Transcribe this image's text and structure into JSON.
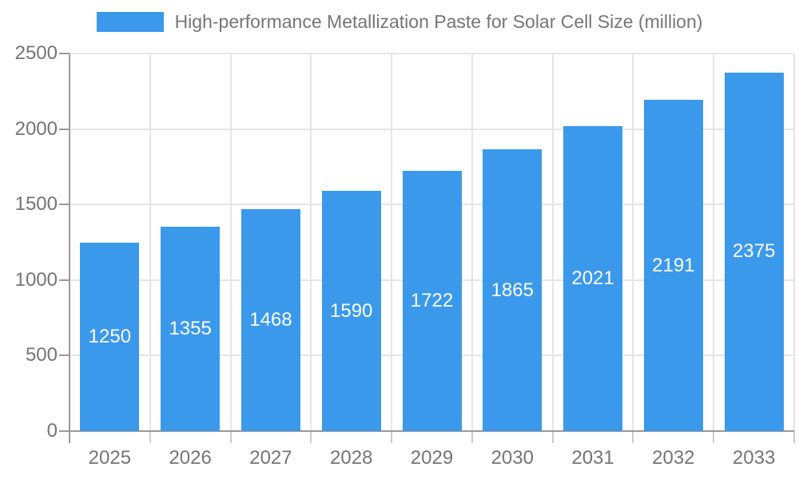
{
  "chart_data": {
    "type": "bar",
    "title": "",
    "legend_label": "High-performance Metallization Paste for Solar Cell Size (million)",
    "legend_position": "top",
    "categories": [
      "2025",
      "2026",
      "2027",
      "2028",
      "2029",
      "2030",
      "2031",
      "2032",
      "2033"
    ],
    "values": [
      1250,
      1355,
      1468,
      1590,
      1722,
      1865,
      2021,
      2191,
      2375
    ],
    "xlabel": "",
    "ylabel": "",
    "ylim": [
      0,
      2500
    ],
    "yticks": [
      0,
      500,
      1000,
      1500,
      2000,
      2500
    ],
    "grid": true,
    "value_labels_inside_bars": true,
    "colors": {
      "bar": "#3B99EC",
      "value_label": "#FFFFFF",
      "axis_text": "#757575",
      "axis_line": "#9A9A9A",
      "grid_line": "#E5E5E5",
      "tick_line": "#CCCCCC",
      "background": "#FFFFFF"
    }
  }
}
